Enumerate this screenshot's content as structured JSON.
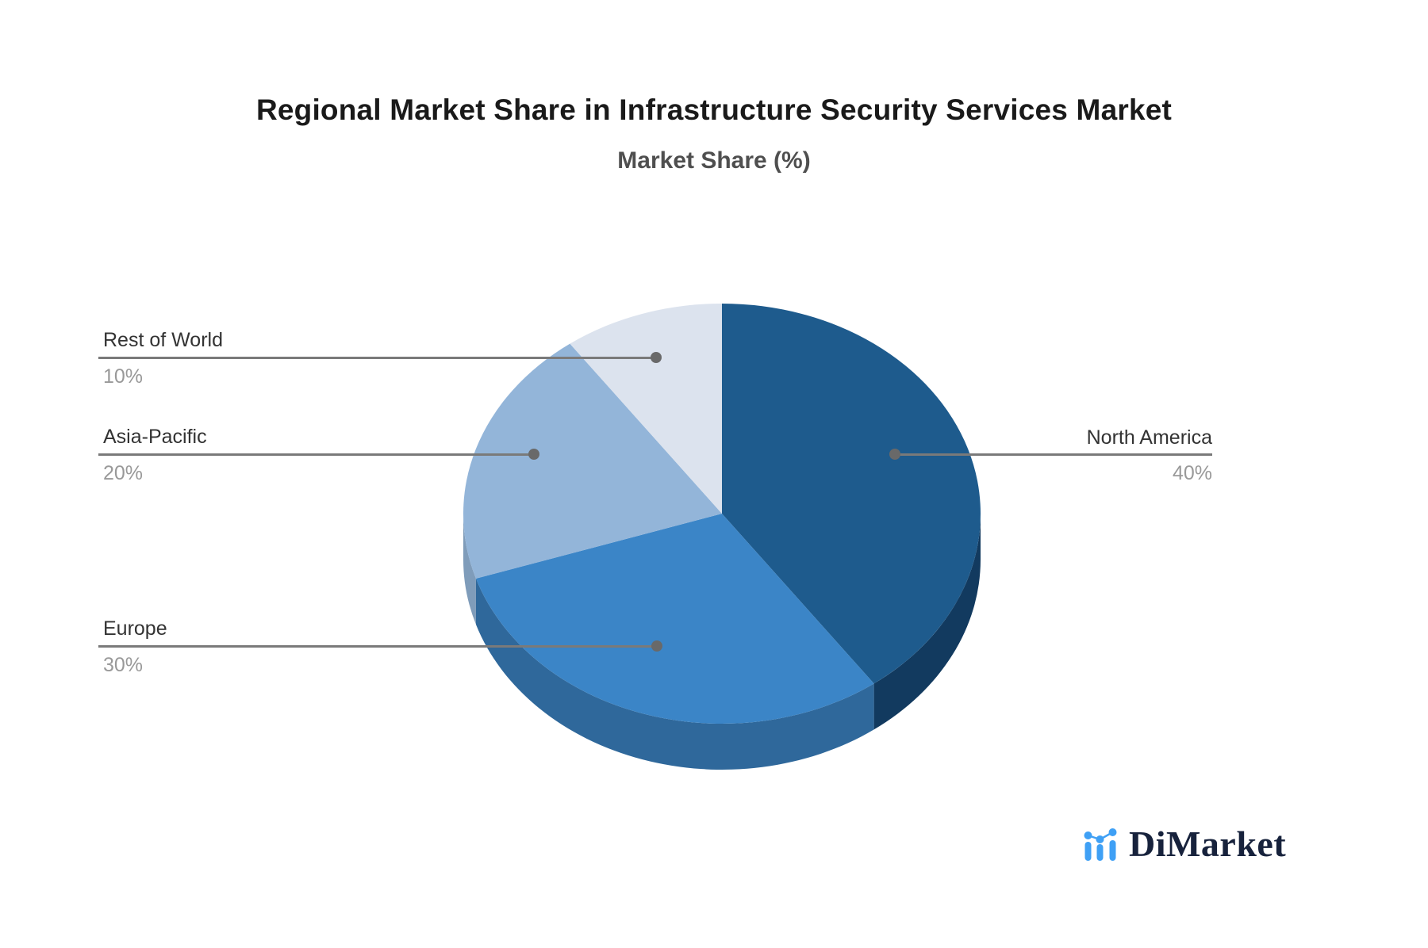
{
  "header": {
    "title": "Regional Market Share in Infrastructure Security Services Market",
    "subtitle": "Market Share (%)"
  },
  "chart_data": {
    "type": "pie",
    "title": "Regional Market Share in Infrastructure Security Services Market",
    "subtitle": "Market Share (%)",
    "unit": "%",
    "style": "3d",
    "direction": "clockwise",
    "start_angle": "12-o-clock",
    "legend_position": "callout-leader-lines",
    "slices": [
      {
        "label": "North America",
        "value": 40,
        "pct": "40%",
        "color": "#1e5b8d",
        "side_color": "#123a5f"
      },
      {
        "label": "Europe",
        "value": 30,
        "pct": "30%",
        "color": "#3b85c7",
        "side_color": "#2f689b"
      },
      {
        "label": "Asia-Pacific",
        "value": 20,
        "pct": "20%",
        "color": "#93b5d9",
        "side_color": "#7f9cba"
      },
      {
        "label": "Rest of World",
        "value": 10,
        "pct": "10%",
        "color": "#dce3ee",
        "side_color": "#c7d1e0"
      }
    ]
  },
  "logo": {
    "text": "DiMarket",
    "icon": "bar-line-combo-chart-icon",
    "icon_color": "#3fa0f5",
    "text_color": "#17223c"
  }
}
